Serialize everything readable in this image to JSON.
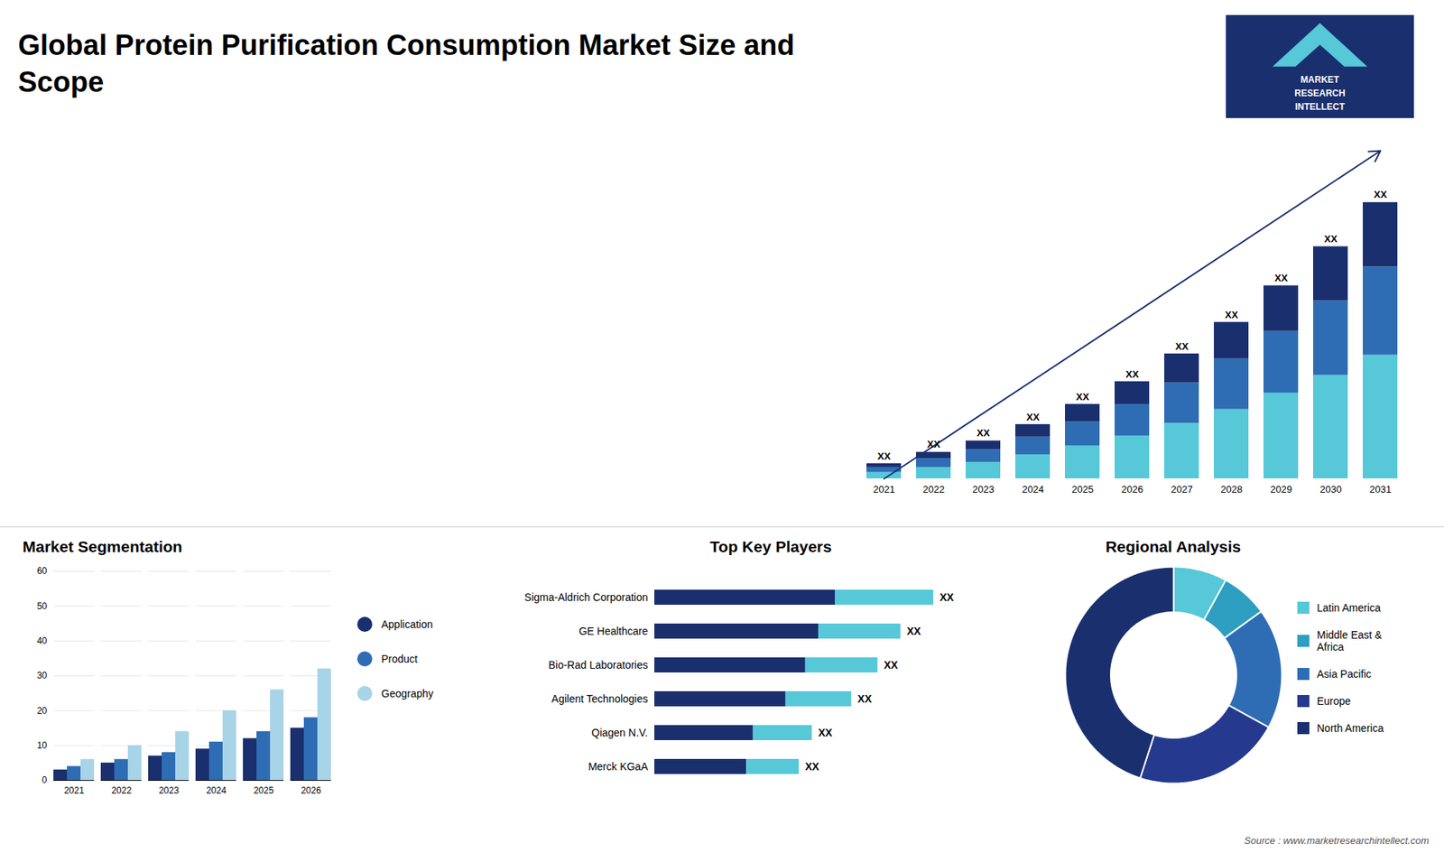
{
  "chart_data": [
    {
      "type": "bar",
      "title": "Global Protein Purification Consumption Market Size and\nScope",
      "categories": [
        "2021",
        "2022",
        "2023",
        "2024",
        "2025",
        "2026",
        "2027",
        "2028",
        "2029",
        "2030",
        "2031"
      ],
      "series": [
        {
          "color": "#56c8d8",
          "values": [
            0.5,
            0.9,
            1.3,
            1.9,
            2.6,
            3.4,
            4.4,
            5.5,
            6.8,
            8.2,
            9.8
          ]
        },
        {
          "color": "#2e6db4",
          "values": [
            0.4,
            0.7,
            1.0,
            1.4,
            1.9,
            2.5,
            3.2,
            4.0,
            4.9,
            5.9,
            7.0
          ]
        },
        {
          "color": "#1a2f6e",
          "values": [
            0.3,
            0.5,
            0.7,
            1.0,
            1.4,
            1.8,
            2.3,
            2.9,
            3.6,
            4.3,
            5.1
          ]
        }
      ],
      "stacked": true,
      "ylim": [
        0,
        26
      ],
      "tick_labels": "x",
      "value_labels": [
        "XX",
        "XX",
        "XX",
        "XX",
        "XX",
        "XX",
        "XX",
        "XX",
        "XX",
        "XX",
        "XX"
      ],
      "annotations": [
        "MARKET",
        "RESEARCH",
        "INTELLECT"
      ]
    },
    {
      "type": "bar",
      "title": "Market Segmentation",
      "categories": [
        "2021",
        "2022",
        "2023",
        "2024",
        "2025",
        "2026"
      ],
      "series": [
        {
          "name": "Application",
          "color": "#1a2f6e",
          "values": [
            3,
            5,
            7,
            9,
            12,
            15
          ]
        },
        {
          "name": "Product",
          "color": "#2e6db4",
          "values": [
            4,
            6,
            8,
            11,
            14,
            18
          ]
        },
        {
          "name": "Geography",
          "color": "#a8d4e8",
          "values": [
            6,
            10,
            14,
            20,
            26,
            32
          ]
        }
      ],
      "ylim": [
        0,
        60
      ],
      "yticks": [
        0,
        10,
        20,
        30,
        40,
        50,
        60
      ],
      "grid": true,
      "legend": "right"
    },
    {
      "type": "bar",
      "title": "Top Key Players",
      "orientation": "horizontal",
      "stacked": true,
      "categories": [
        "Sigma-Aldrich Corporation",
        "GE Healthcare",
        "Bio-Rad Laboratories",
        "Agilent Technologies",
        "Qiagen N.V.",
        "Merck KGaA"
      ],
      "series": [
        {
          "color": "#1a2f6e",
          "values": [
            55,
            50,
            46,
            40,
            30,
            28
          ]
        },
        {
          "color": "#56c8d8",
          "values": [
            30,
            25,
            22,
            20,
            18,
            16
          ]
        }
      ],
      "xlim": [
        0,
        110
      ],
      "tick_labels": "y",
      "value_labels": [
        "XX",
        "XX",
        "XX",
        "XX",
        "XX",
        "XX"
      ]
    },
    {
      "type": "pie",
      "title": "Regional Analysis",
      "categories": [
        "Latin America",
        "Middle East &\nAfrica",
        "Asia Pacific",
        "Europe",
        "North America"
      ],
      "values": [
        8,
        7,
        18,
        22,
        45
      ],
      "colors": [
        "#56c8d8",
        "#2e9fc0",
        "#2e6db4",
        "#253a8e",
        "#1a2f6e"
      ],
      "legend": "right",
      "annotations": [
        "Source : www.marketresearchintellect.com"
      ]
    }
  ]
}
